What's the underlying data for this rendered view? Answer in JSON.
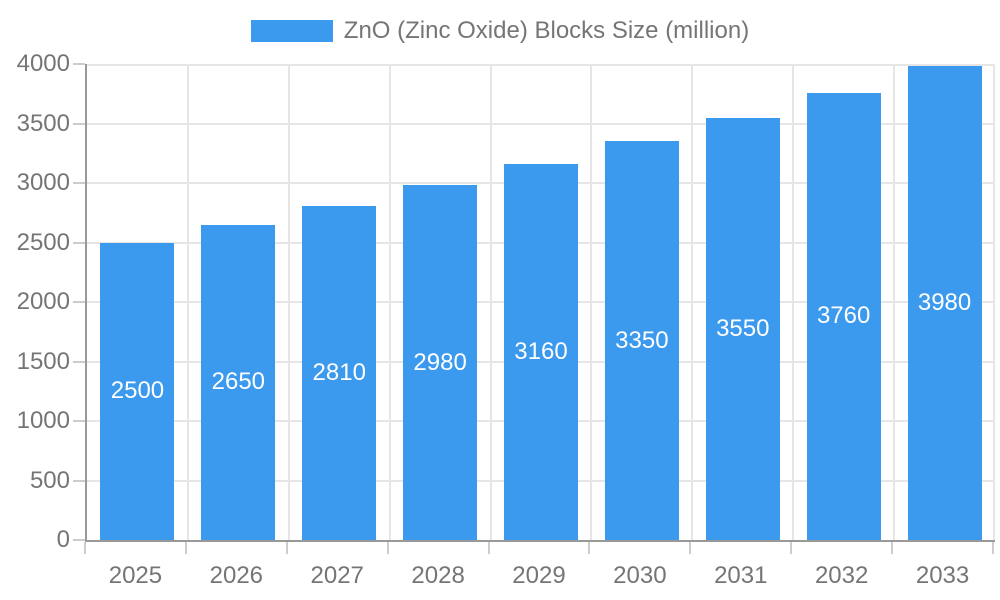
{
  "chart_data": {
    "type": "bar",
    "title": "",
    "legend_label": "ZnO (Zinc Oxide) Blocks Size (million)",
    "legend_position": "top",
    "categories": [
      "2025",
      "2026",
      "2027",
      "2028",
      "2029",
      "2030",
      "2031",
      "2032",
      "2033"
    ],
    "values": [
      2500,
      2650,
      2810,
      2980,
      3160,
      3350,
      3550,
      3760,
      3980
    ],
    "data_labels": [
      2500,
      2650,
      2810,
      2980,
      3160,
      3350,
      3550,
      3760,
      3980
    ],
    "xlabel": "",
    "ylabel": "",
    "ylim": [
      0,
      4000
    ],
    "ytick_step": 500,
    "yticks": [
      0,
      500,
      1000,
      1500,
      2000,
      2500,
      3000,
      3500,
      4000
    ],
    "grid": true,
    "colors": {
      "bar": "#3b99ee",
      "bar_label_text": "#ffffff",
      "axis_line": "#999999",
      "gridline": "#e6e6e6",
      "tick": "#cccccc",
      "text": "#757575",
      "background": "#ffffff"
    }
  }
}
